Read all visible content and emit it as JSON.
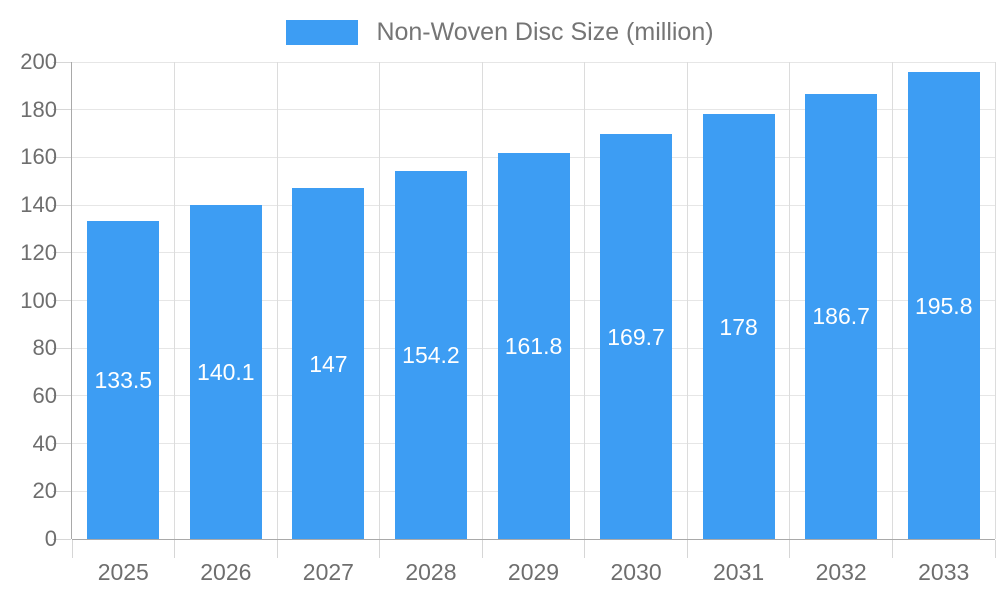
{
  "legend": {
    "label": "Non-Woven Disc Size (million)"
  },
  "chart_data": {
    "type": "bar",
    "title": "",
    "xlabel": "",
    "ylabel": "",
    "categories": [
      "2025",
      "2026",
      "2027",
      "2028",
      "2029",
      "2030",
      "2031",
      "2032",
      "2033"
    ],
    "series": [
      {
        "name": "Non-Woven Disc Size (million)",
        "values": [
          133.5,
          140.1,
          147,
          154.2,
          161.8,
          169.7,
          178,
          186.7,
          195.8
        ]
      }
    ],
    "ylim": [
      0,
      200
    ],
    "yticks": [
      0,
      20,
      40,
      60,
      80,
      100,
      120,
      140,
      160,
      180,
      200
    ],
    "grid": true,
    "legend_position": "top",
    "bar_labels_inside": true,
    "colors": {
      "bar": "#3D9DF3",
      "bar_label": "#FFFFFF",
      "axis_text": "#6E6E6E",
      "legend_text": "#757575",
      "axis_line": "#A9A9A9",
      "grid_line": "#E6E6E6",
      "grid_line_vertical": "#DCDCDC",
      "tick_line": "#D6D6D6",
      "background": "#FFFFFF"
    }
  }
}
